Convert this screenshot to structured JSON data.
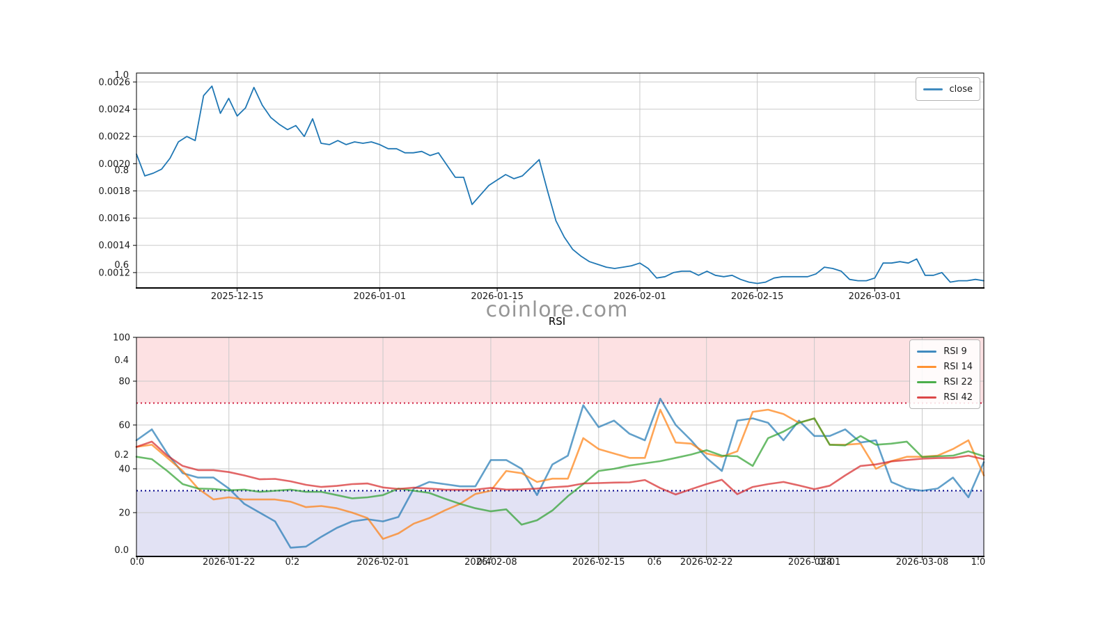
{
  "watermark": "coinlore.com",
  "colors": {
    "close_line": "#1f77b4",
    "rsi9": "#1f77b4",
    "rsi14": "#ff7f0e",
    "rsi22": "#2ca02c",
    "rsi42": "#d62728",
    "overbought_band": "#fde1e3",
    "oversold_band": "#e2e2f4",
    "overbought_line": "#cf1f3f",
    "oversold_line": "#00008b",
    "grid": "#c9c9c9",
    "spine": "#000000",
    "watermark_color": "#969696"
  },
  "ghost_axis": {
    "xtick_labels": [
      "0.0",
      "0.2",
      "0.4",
      "0.6",
      "0.8",
      "1.0"
    ],
    "ytick_labels": [
      "1.0",
      "0.8",
      "0.6",
      "0.4",
      "0.2",
      "0.0"
    ]
  },
  "chart_data": [
    {
      "type": "line",
      "title": "",
      "legend_position": "upper right",
      "grid": true,
      "ylim": [
        0.001087,
        0.002666
      ],
      "ytick_labels": [
        "0.0012",
        "0.0014",
        "0.0016",
        "0.0018",
        "0.0020",
        "0.0022",
        "0.0024",
        "0.0026"
      ],
      "ytick_values": [
        0.0012,
        0.0014,
        0.0016,
        0.0018,
        0.002,
        0.0022,
        0.0024,
        0.0026
      ],
      "x_range": [
        "2025-12-03",
        "2026-03-14"
      ],
      "xticks": [
        {
          "label": "2025-12-15",
          "index": 12
        },
        {
          "label": "2026-01-01",
          "index": 29
        },
        {
          "label": "2026-01-15",
          "index": 43
        },
        {
          "label": "2026-02-01",
          "index": 60
        },
        {
          "label": "2026-02-15",
          "index": 74
        },
        {
          "label": "2026-03-01",
          "index": 88
        }
      ],
      "series": [
        {
          "name": "close",
          "color": "#1f77b4",
          "values": [
            0.00207,
            0.00191,
            0.00193,
            0.00196,
            0.00204,
            0.00216,
            0.0022,
            0.00217,
            0.0025,
            0.00257,
            0.00237,
            0.00248,
            0.00235,
            0.00241,
            0.00256,
            0.00243,
            0.00234,
            0.00229,
            0.00225,
            0.00228,
            0.0022,
            0.00233,
            0.00215,
            0.00214,
            0.00217,
            0.00214,
            0.00216,
            0.00215,
            0.00216,
            0.00214,
            0.00211,
            0.00211,
            0.00208,
            0.00208,
            0.00209,
            0.00206,
            0.00208,
            0.00199,
            0.0019,
            0.0019,
            0.0017,
            0.00177,
            0.00184,
            0.00188,
            0.00192,
            0.00189,
            0.00191,
            0.00197,
            0.00203,
            0.0018,
            0.00158,
            0.00146,
            0.00137,
            0.00132,
            0.00128,
            0.00126,
            0.00124,
            0.00123,
            0.00124,
            0.00125,
            0.00127,
            0.00123,
            0.00116,
            0.00117,
            0.0012,
            0.00121,
            0.00121,
            0.00118,
            0.00121,
            0.00118,
            0.00117,
            0.00118,
            0.00115,
            0.00113,
            0.00112,
            0.00113,
            0.00116,
            0.00117,
            0.00117,
            0.00117,
            0.00117,
            0.00119,
            0.00124,
            0.00123,
            0.00121,
            0.00115,
            0.00114,
            0.00114,
            0.00116,
            0.00127,
            0.00127,
            0.00128,
            0.00127,
            0.0013,
            0.00118,
            0.00118,
            0.0012,
            0.00113,
            0.00114,
            0.00114,
            0.00115,
            0.00114
          ]
        }
      ]
    },
    {
      "type": "line",
      "title": "RSI",
      "legend_position": "upper right",
      "grid": true,
      "ylim": [
        0,
        100
      ],
      "ytick_labels": [
        "20",
        "40",
        "60",
        "80",
        "100"
      ],
      "ytick_values": [
        20,
        40,
        60,
        80,
        100
      ],
      "overbought_level": 70,
      "oversold_level": 30,
      "bands": [
        {
          "from": 70,
          "to": 100,
          "color": "#fde1e3",
          "name": "overbought-band"
        },
        {
          "from": 0,
          "to": 30,
          "color": "#e2e2f4",
          "name": "oversold-band"
        }
      ],
      "hlines": [
        {
          "y": 70,
          "color": "#cf1f3f",
          "style": "dotted",
          "name": "overbought-line"
        },
        {
          "y": 30,
          "color": "#00008b",
          "style": "dotted",
          "name": "oversold-line"
        }
      ],
      "x_range": [
        "2026-01-16",
        "2026-03-13"
      ],
      "xticks": [
        {
          "label": "2026-01-22",
          "index": 6
        },
        {
          "label": "2026-02-01",
          "index": 16
        },
        {
          "label": "2026-02-08",
          "index": 23
        },
        {
          "label": "2026-02-15",
          "index": 30
        },
        {
          "label": "2026-02-22",
          "index": 37
        },
        {
          "label": "2026-03-01",
          "index": 44
        },
        {
          "label": "2026-03-08",
          "index": 51
        }
      ],
      "series": [
        {
          "name": "RSI 9",
          "color": "#1f77b4",
          "values": [
            53,
            58,
            47,
            38,
            36,
            36,
            31,
            24,
            20,
            16,
            4,
            4.5,
            9,
            13,
            16,
            17,
            16,
            18,
            31,
            34,
            33,
            32,
            32,
            44,
            44,
            40,
            28,
            42,
            46,
            69,
            59,
            62,
            56,
            53,
            72,
            60,
            53,
            45,
            39,
            62,
            63,
            61,
            53,
            62,
            55,
            55,
            58,
            52,
            53,
            34,
            31,
            30,
            31,
            36,
            27,
            43
          ]
        },
        {
          "name": "RSI 14",
          "color": "#ff7f0e",
          "values": [
            50,
            51,
            45,
            39,
            31,
            26,
            27,
            26,
            26,
            26,
            25,
            22.5,
            23,
            22,
            20,
            17.5,
            8,
            10.5,
            15,
            17.5,
            21,
            24,
            28.5,
            30,
            39,
            38,
            34,
            35.5,
            35.5,
            54,
            49,
            47,
            45,
            45,
            67,
            52,
            51.5,
            47,
            45.5,
            48,
            66,
            67,
            65,
            61,
            63,
            51,
            51,
            51.5,
            40,
            43.5,
            45.5,
            45.5,
            46,
            49,
            53,
            37
          ]
        },
        {
          "name": "RSI 22",
          "color": "#2ca02c",
          "values": [
            45.5,
            44.4,
            39,
            33,
            31,
            30.8,
            30.2,
            30.5,
            29.5,
            30,
            30.5,
            29.5,
            29.5,
            28,
            26.5,
            27,
            28,
            31,
            30,
            29,
            26.4,
            24,
            22,
            20.6,
            21.5,
            14.5,
            16.5,
            21,
            27.5,
            33,
            39,
            40,
            41.5,
            42.5,
            43.5,
            45,
            46.5,
            48.5,
            46,
            45.7,
            41.3,
            54,
            57,
            61,
            63,
            51,
            50.7,
            55,
            51,
            51.5,
            52.4,
            45.4,
            45.7,
            46,
            48,
            45.7
          ]
        },
        {
          "name": "RSI 42",
          "color": "#d62728",
          "values": [
            50,
            52.4,
            46,
            41.3,
            39.4,
            39.4,
            38.5,
            37,
            35.2,
            35.4,
            34.3,
            32.7,
            31.7,
            32.2,
            33,
            33.3,
            31.5,
            30.8,
            31.4,
            31,
            30.5,
            30.4,
            30.5,
            31.3,
            30.5,
            30.6,
            31,
            31.6,
            32,
            33.3,
            33.5,
            33.7,
            33.8,
            34.9,
            31.2,
            28.3,
            30.7,
            33,
            35,
            28.4,
            31.7,
            33,
            34,
            32.4,
            30.7,
            32.3,
            37,
            41.3,
            42,
            43.4,
            44,
            44.6,
            44.9,
            45,
            46,
            44.4
          ]
        }
      ]
    }
  ]
}
